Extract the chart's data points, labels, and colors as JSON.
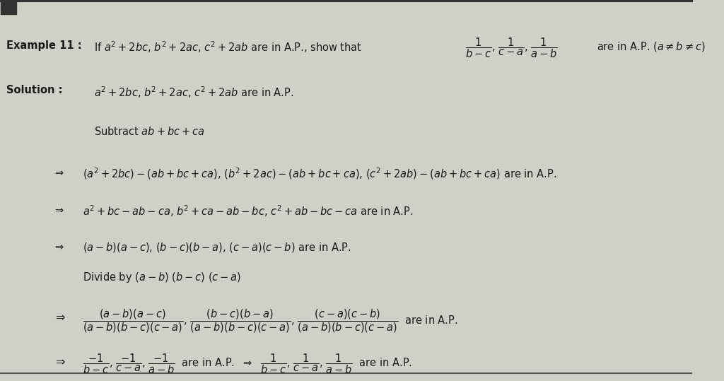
{
  "bg_color": "#d0cfc8",
  "text_color": "#1a1a1a",
  "fig_width": 10.24,
  "fig_height": 5.39,
  "dpi": 100
}
